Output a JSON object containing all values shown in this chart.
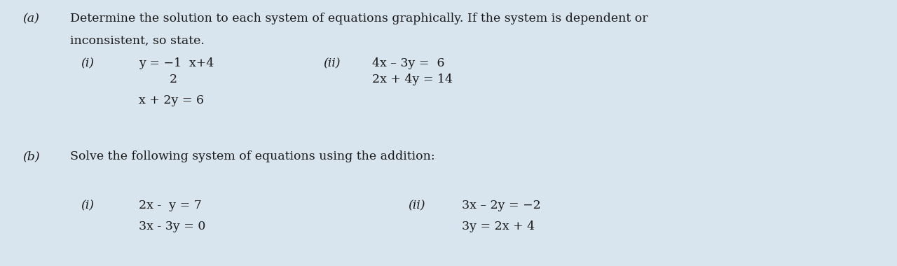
{
  "bg_color": "#d8e4ee",
  "text_color": "#1a1a1a",
  "fig_width": 12.8,
  "fig_height": 3.8,
  "dpi": 100,
  "label_a": "(a)",
  "label_b": "(b)",
  "part_a_line1": "Determine the solution to each system of equations graphically. If the system is dependent or",
  "part_a_line2": "inconsistent, so state.",
  "part_a_i_label": "(i)",
  "part_a_i_eq1a": "y = −1  x+4",
  "part_a_i_eq1b": "2",
  "part_a_i_eq2": "x + 2y = 6",
  "part_a_ii_label": "(ii)",
  "part_a_ii_eq1": "4x – 3y =  6",
  "part_a_ii_eq2": "2x + 4y = 14",
  "part_b_line1": "Solve the following system of equations using the addition:",
  "part_b_i_label": "(i)",
  "part_b_i_eq1": "2x -  y = 7",
  "part_b_i_eq2": "3x - 3y = 0",
  "part_b_ii_label": "(ii)",
  "part_b_ii_eq1": "3x – 2y = −2",
  "part_b_ii_eq2": "3y = 2x + 4",
  "fs_body": 12.5,
  "fs_eq": 12.5,
  "fs_label": 12.5
}
